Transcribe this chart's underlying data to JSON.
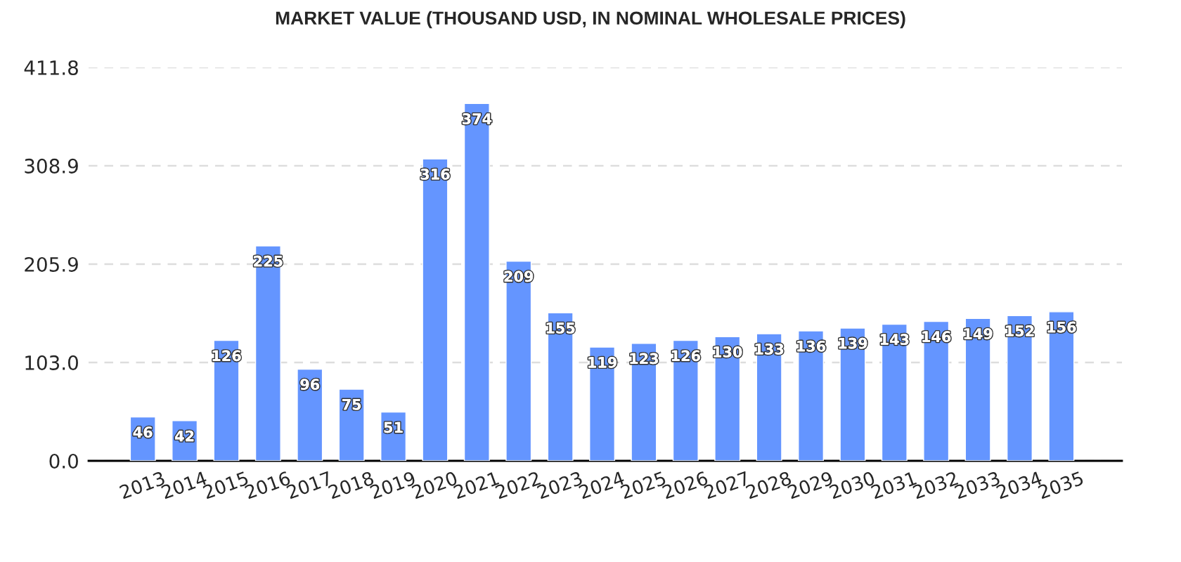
{
  "chart_data": {
    "type": "bar",
    "title": "MARKET VALUE (THOUSAND USD, IN NOMINAL WHOLESALE PRICES)",
    "categories": [
      "2013",
      "2014",
      "2015",
      "2016",
      "2017",
      "2018",
      "2019",
      "2020",
      "2021",
      "2022",
      "2023",
      "2024",
      "2025",
      "2026",
      "2027",
      "2028",
      "2029",
      "2030",
      "2031",
      "2032",
      "2033",
      "2034",
      "2035"
    ],
    "series": [
      {
        "color": "#6495ff",
        "values": [
          46,
          42,
          126,
          225,
          96,
          75,
          51,
          316,
          374,
          209,
          155,
          119,
          123,
          126,
          130,
          133,
          136,
          139,
          143,
          146,
          149,
          152,
          156
        ]
      }
    ],
    "ylim": [
      0,
      411.8
    ],
    "yticks": [
      {
        "value": 0,
        "label": "0.0"
      },
      {
        "value": 103,
        "label": "103.0"
      },
      205.9,
      308.9,
      411.8
    ],
    "grid": "y",
    "data_labels": true
  }
}
